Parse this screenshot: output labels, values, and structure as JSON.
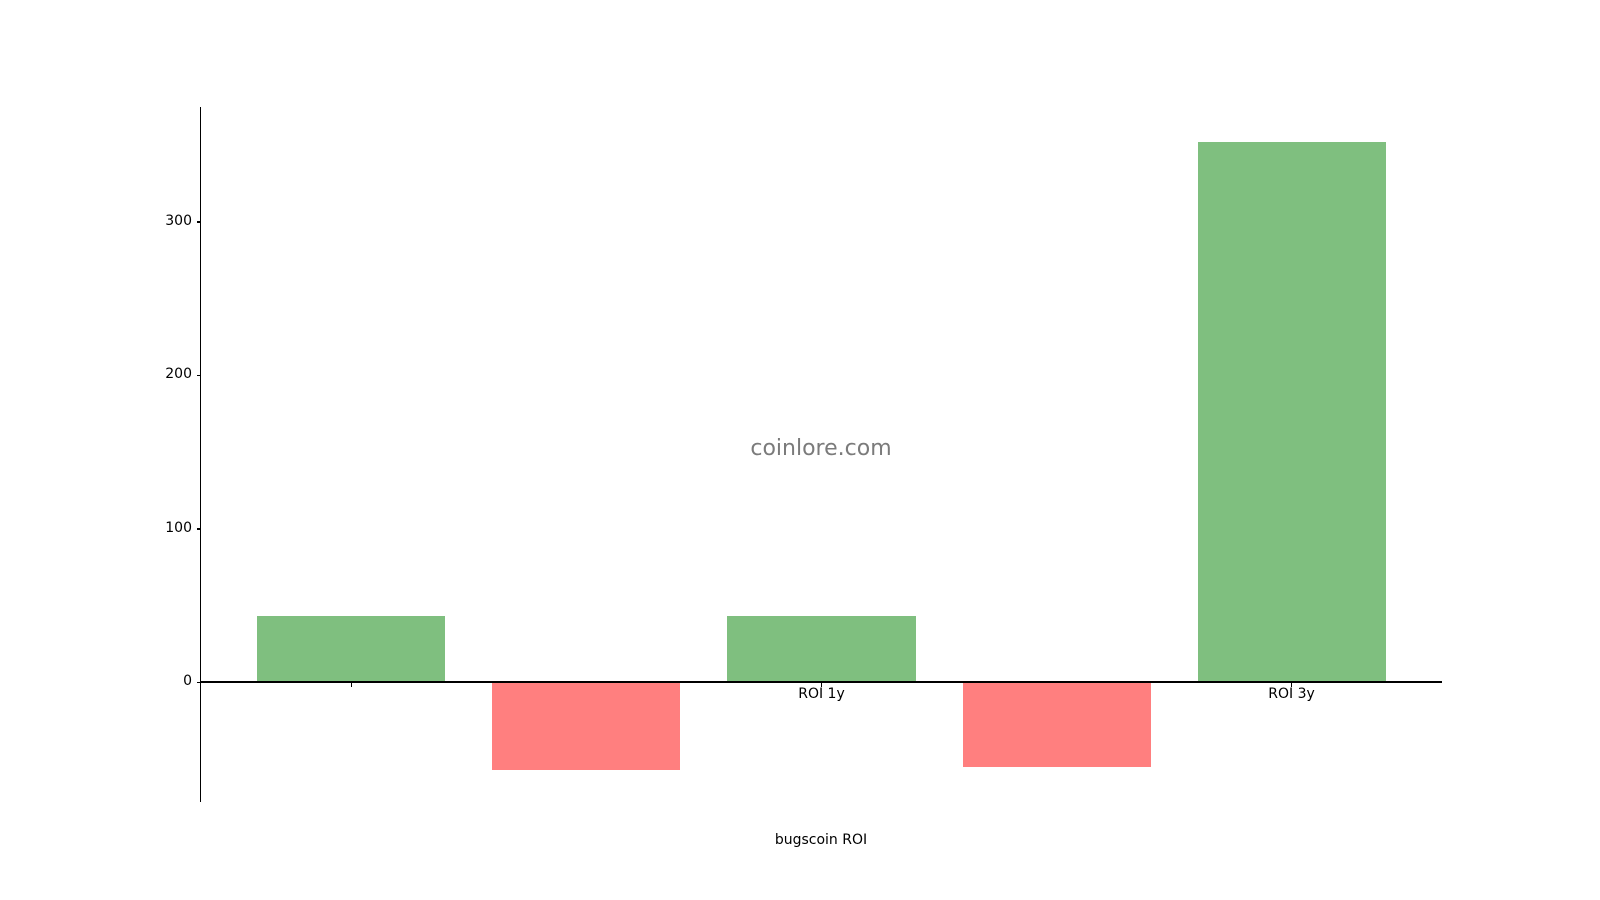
{
  "watermark": "coinlore.com",
  "chart_data": {
    "type": "bar",
    "title": "",
    "xlabel": "bugscoin ROI",
    "ylabel": "",
    "categories": [
      "",
      "",
      "ROI 1y",
      "",
      "ROI 3y"
    ],
    "values": [
      43,
      -57,
      43,
      -55,
      352
    ],
    "y_ticks": [
      0,
      100,
      200,
      300
    ],
    "ylim": [
      -78,
      375
    ],
    "grid": false,
    "legend": false,
    "colors": {
      "positive_bar": "#7fbf7f",
      "negative_bar": "#ff7f7f",
      "axis": "#000000",
      "watermark_text": "#7b7b7b"
    }
  }
}
